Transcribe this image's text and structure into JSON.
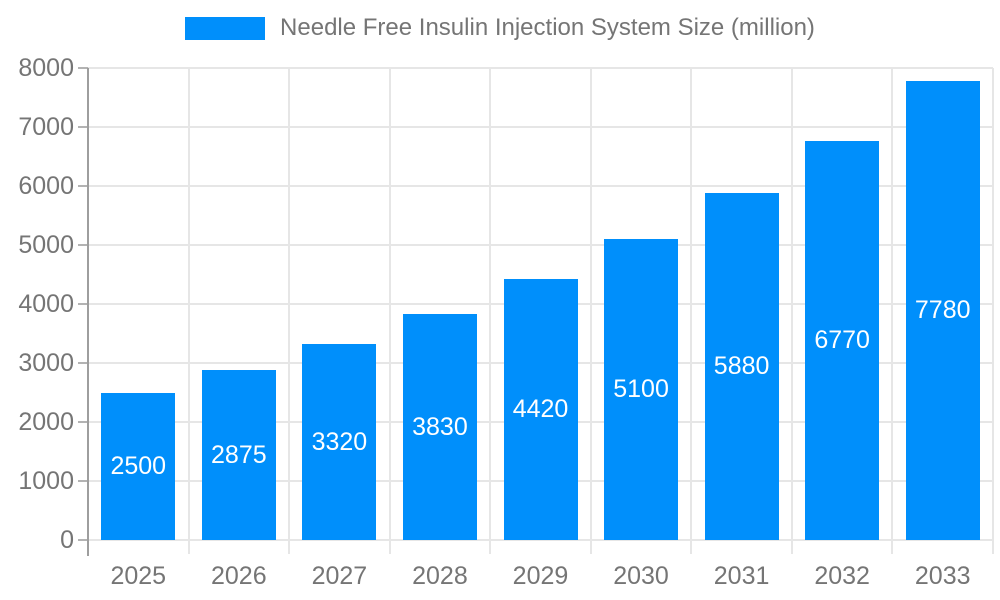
{
  "legend": {
    "label": "Needle Free Insulin Injection System Size (million)"
  },
  "chart_data": {
    "type": "bar",
    "title": "Needle Free Insulin Injection System Size (million)",
    "categories": [
      "2025",
      "2026",
      "2027",
      "2028",
      "2029",
      "2030",
      "2031",
      "2032",
      "2033"
    ],
    "series": [
      {
        "name": "Needle Free Insulin Injection System Size (million)",
        "values": [
          2500,
          2875,
          3320,
          3830,
          4420,
          5100,
          5880,
          6770,
          7780
        ]
      }
    ],
    "xlabel": "",
    "ylabel": "",
    "ylim": [
      0,
      8000
    ],
    "yticks": [
      0,
      1000,
      2000,
      3000,
      4000,
      5000,
      6000,
      7000,
      8000
    ],
    "grid": true,
    "legend_position": "top",
    "data_labels_inside_bars": true,
    "colors": {
      "bar": "#008FFB",
      "bar_label": "#ffffff",
      "axis_label": "#757575",
      "legend_text": "#757575",
      "grid_line": "#e6e6e6",
      "axis_line": "#9e9e9e",
      "tick": "#b3b3b3",
      "background": "#ffffff"
    }
  }
}
